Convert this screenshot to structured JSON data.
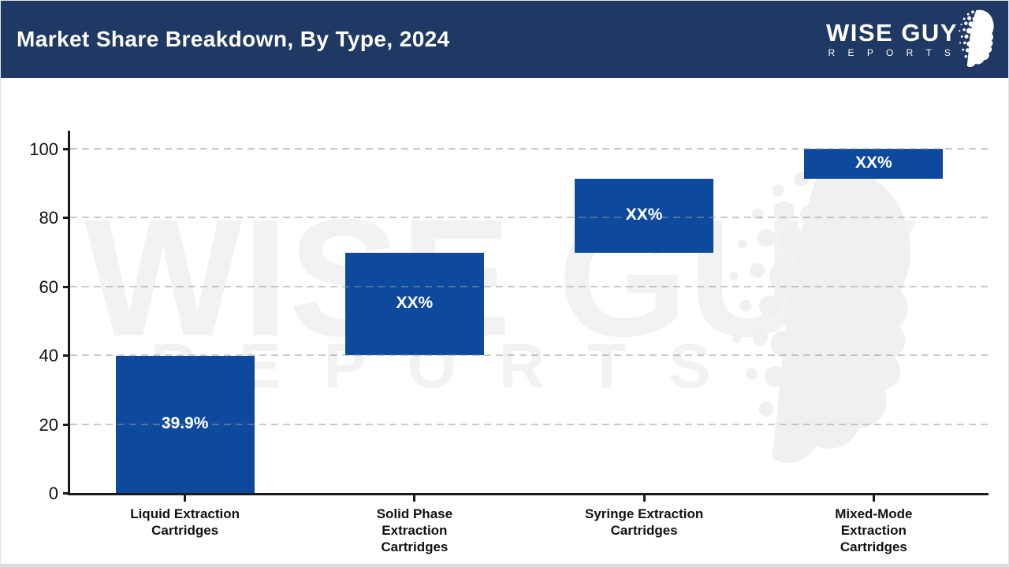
{
  "header": {
    "title": "Market Share Breakdown, By Type, 2024",
    "logo": {
      "line1": "WISE GUY",
      "line2": "R E P O R T S"
    }
  },
  "watermark": {
    "line1": "WISE GUY",
    "line2": "R E P O R T S"
  },
  "colors": {
    "header_bg": "#1F3864",
    "bar": "#0D4A9E",
    "grid": "#c9c9c9",
    "axis": "#1a1a1a",
    "watermark": "#f2f2f2"
  },
  "chart_data": {
    "type": "bar",
    "subtype": "waterfall",
    "title": "Market Share Breakdown, By Type, 2024",
    "ylim": [
      0,
      100
    ],
    "yticks": [
      0,
      20,
      40,
      60,
      80,
      100
    ],
    "grid": "horizontal-dashed",
    "legend": "none",
    "bar_color": "#0D4A9E",
    "categories": [
      {
        "name": "Liquid Extraction Cartridges",
        "lines": [
          "Liquid Extraction",
          "Cartridges"
        ]
      },
      {
        "name": "Solid Phase Extraction Cartridges",
        "lines": [
          "Solid Phase",
          "Extraction",
          "Cartridges"
        ]
      },
      {
        "name": "Syringe Extraction Cartridges",
        "lines": [
          "Syringe Extraction",
          "Cartridges"
        ]
      },
      {
        "name": "Mixed-Mode Extraction Cartridges",
        "lines": [
          "Mixed-Mode",
          "Extraction",
          "Cartridges"
        ]
      }
    ],
    "segments": [
      {
        "category": "Liquid Extraction Cartridges",
        "label": "39.9%",
        "start": 0,
        "end": 39.9
      },
      {
        "category": "Solid Phase Extraction Cartridges",
        "label": "XX%",
        "start": 40,
        "end": 69.7
      },
      {
        "category": "Syringe Extraction Cartridges",
        "label": "XX%",
        "start": 69.7,
        "end": 91.4
      },
      {
        "category": "Mixed-Mode Extraction Cartridges",
        "label": "XX%",
        "start": 91.4,
        "end": 100
      }
    ]
  }
}
